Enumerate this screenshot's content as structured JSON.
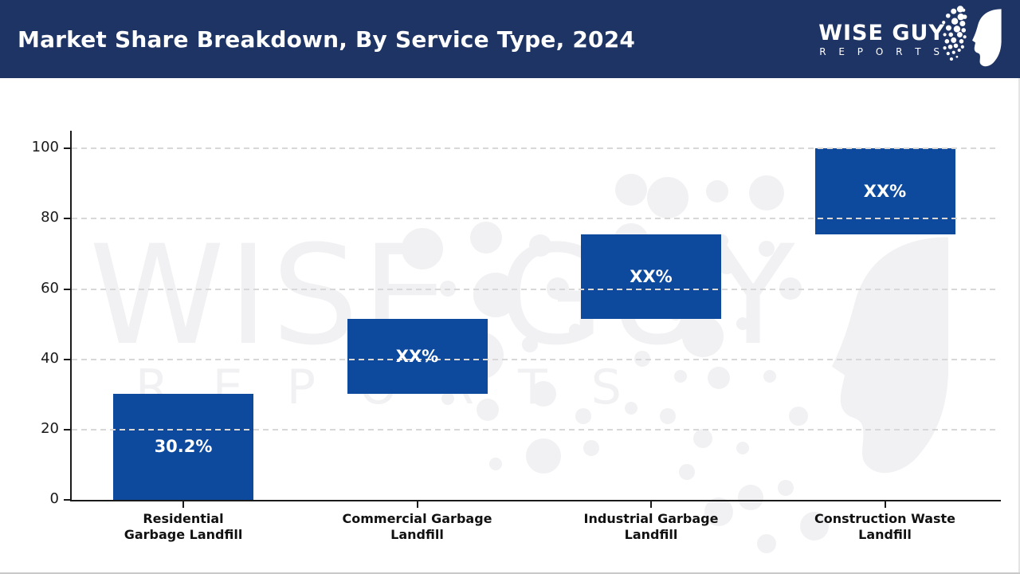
{
  "header": {
    "title": "Market Share Breakdown, By Service Type, 2024",
    "logo": {
      "line1": "WISE GUY",
      "line2": "R E P O R T S"
    }
  },
  "watermark": {
    "line1": "WISE GUY",
    "line2": "R E P O R T S"
  },
  "colors": {
    "header_bg": "#1e3464",
    "bar": "#0d4a9e",
    "grid": "#d8d8d8",
    "axis": "#1a1a1a",
    "bar_label_text": "#ffffff",
    "watermark": "#f1f1f3"
  },
  "chart_data": {
    "type": "waterfall",
    "title": "Market Share Breakdown, By Service Type, 2024",
    "xlabel": "",
    "ylabel": "",
    "ylim": [
      0,
      105
    ],
    "yticks": [
      0,
      20,
      40,
      60,
      80,
      100
    ],
    "grid": "horizontal dashed",
    "legend": "none",
    "categories": [
      "Residential Garbage Landfill",
      "Commercial Garbage Landfill",
      "Industrial Garbage Landfill",
      "Construction Waste Landfill"
    ],
    "segments": [
      {
        "category": "Residential Garbage Landfill",
        "lines": [
          "Residential",
          "Garbage Landfill"
        ],
        "label": "30.2%",
        "start": 0,
        "end": 30.2
      },
      {
        "category": "Commercial Garbage Landfill",
        "lines": [
          "Commercial Garbage",
          "Landfill"
        ],
        "label": "XX%",
        "start": 30.2,
        "end": 51.5
      },
      {
        "category": "Industrial Garbage Landfill",
        "lines": [
          "Industrial Garbage",
          "Landfill"
        ],
        "label": "XX%",
        "start": 51.5,
        "end": 75.6
      },
      {
        "category": "Construction Waste Landfill",
        "lines": [
          "Construction Waste",
          "Landfill"
        ],
        "label": "XX%",
        "start": 75.6,
        "end": 100
      }
    ]
  }
}
